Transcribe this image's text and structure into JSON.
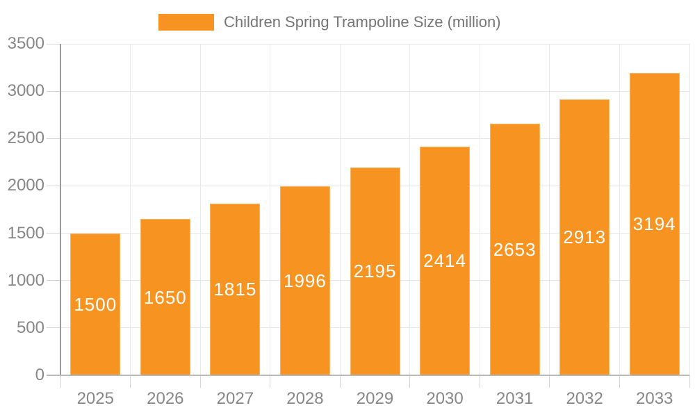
{
  "chart_data": {
    "type": "bar",
    "title": "Children Spring Trampoline Size (million)",
    "categories": [
      "2025",
      "2026",
      "2027",
      "2028",
      "2029",
      "2030",
      "2031",
      "2032",
      "2033"
    ],
    "values": [
      1500,
      1650,
      1815,
      1996,
      2195,
      2414,
      2653,
      2913,
      3194
    ],
    "series": [
      {
        "name": "Children Spring Trampoline Size (million)",
        "values": [
          1500,
          1650,
          1815,
          1996,
          2195,
          2414,
          2653,
          2913,
          3194
        ]
      }
    ],
    "xlabel": "",
    "ylabel": "",
    "ylim": [
      0,
      3500
    ],
    "yticks": [
      0,
      500,
      1000,
      1500,
      2000,
      2500,
      3000,
      3500
    ],
    "grid": true,
    "legend_position": "top-center",
    "value_labels": "inside-center",
    "bar_color": "#F79421",
    "value_label_color": "#FFFFFF",
    "axis_text_color": "#878787",
    "legend_text_color": "#757575",
    "gridline_color": "#E5E5E5",
    "background_color": "#FFFFFF"
  }
}
